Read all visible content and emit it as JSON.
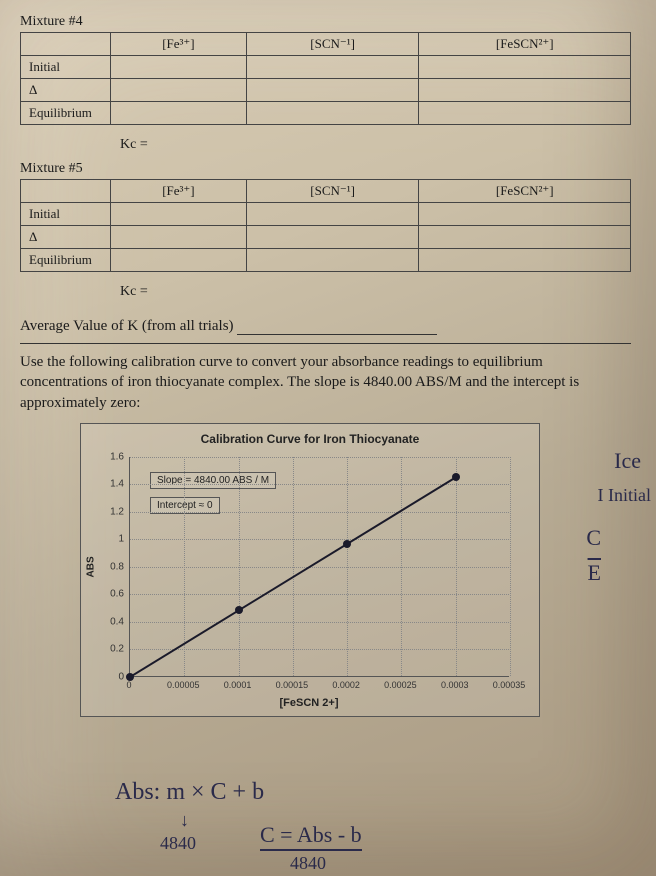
{
  "mixture4": {
    "label": "Mixture #4",
    "headers": [
      "[Fe³⁺]",
      "[SCN⁻¹]",
      "[FeSCN²⁺]"
    ],
    "rows": [
      "Initial",
      "Δ",
      "Equilibrium"
    ]
  },
  "kc_label": "Kc =",
  "mixture5": {
    "label": "Mixture #5",
    "headers": [
      "[Fe³⁺]",
      "[SCN⁻¹]",
      "[FeSCN²⁺]"
    ],
    "rows": [
      "Initial",
      "Δ",
      "Equilibrium"
    ]
  },
  "avg_label": "Average Value of K (from all trials)",
  "instructions": "Use the following calibration curve to convert your absorbance readings to equilibrium concentrations of iron thiocyanate complex. The slope is 4840.00 ABS/M and the intercept is approximately zero:",
  "chart": {
    "title": "Calibration Curve for Iron Thiocyanate",
    "slope_label": "Slope = 4840.00 ABS / M",
    "intercept_label": "Intercept ≈ 0",
    "y_label": "ABS",
    "x_label": "[FeSCN 2+]",
    "y_ticks": [
      0,
      0.2,
      0.4,
      0.6,
      0.8,
      1,
      1.2,
      1.4,
      1.6
    ],
    "y_max": 1.6,
    "x_ticks": [
      0,
      5e-05,
      0.0001,
      0.00015,
      0.0002,
      0.00025,
      0.0003,
      0.00035
    ],
    "x_max": 0.00035,
    "points": [
      {
        "x": 0,
        "y": 0
      },
      {
        "x": 0.0001,
        "y": 0.484
      },
      {
        "x": 0.0002,
        "y": 0.968
      },
      {
        "x": 0.0003,
        "y": 1.452
      }
    ],
    "line_color": "#1a1a2a",
    "point_color": "#1a1a2a",
    "grid_color": "#999999"
  },
  "handwriting": {
    "ice": "Ice",
    "i": "I  Initial",
    "c": "C",
    "e": "E",
    "abs_eq": "Abs: m × C + b",
    "arrow": "↓",
    "slope_val": "4840",
    "c_eq": "C = Abs - b",
    "denom": "4840"
  }
}
